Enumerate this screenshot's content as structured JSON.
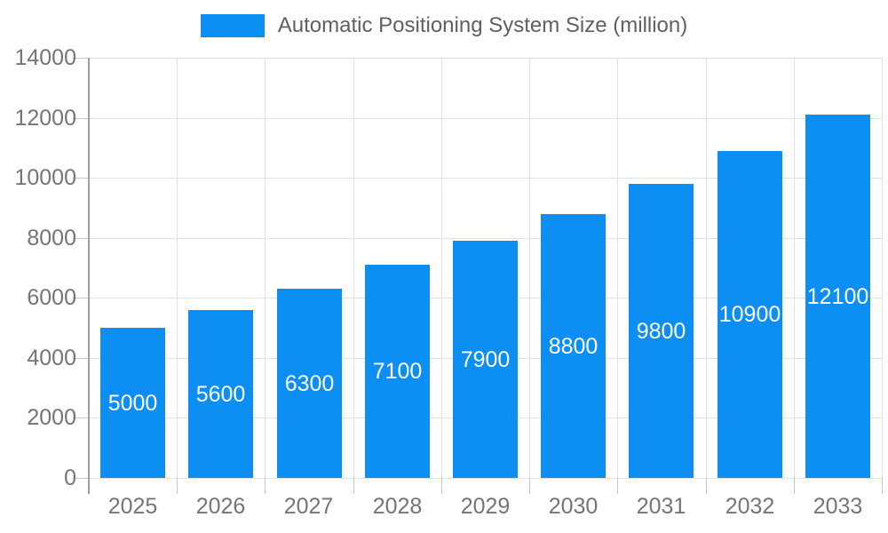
{
  "chart_data": {
    "type": "bar",
    "title": "Automatic Positioning System Size (million)",
    "categories": [
      "2025",
      "2026",
      "2027",
      "2028",
      "2029",
      "2030",
      "2031",
      "2032",
      "2033"
    ],
    "values": [
      5000,
      5600,
      6300,
      7100,
      7900,
      8800,
      9800,
      10900,
      12100
    ],
    "xlabel": "",
    "ylabel": "",
    "ylim": [
      0,
      14000
    ],
    "ytick_step": 2000,
    "ytick_labels": [
      "0",
      "2000",
      "4000",
      "6000",
      "8000",
      "10000",
      "12000",
      "14000"
    ],
    "grid": true,
    "legend_position": "top",
    "bar_labels_inside": true
  },
  "colors": {
    "bar": "#0d8ef2",
    "bar_label": "#ffffff",
    "axis_line": "#9e9e9e",
    "grid_line": "#e2e2e2",
    "tick": "#c6c6c6",
    "tick_label": "#757575",
    "legend_text": "#5f6062",
    "background": "#ffffff"
  }
}
